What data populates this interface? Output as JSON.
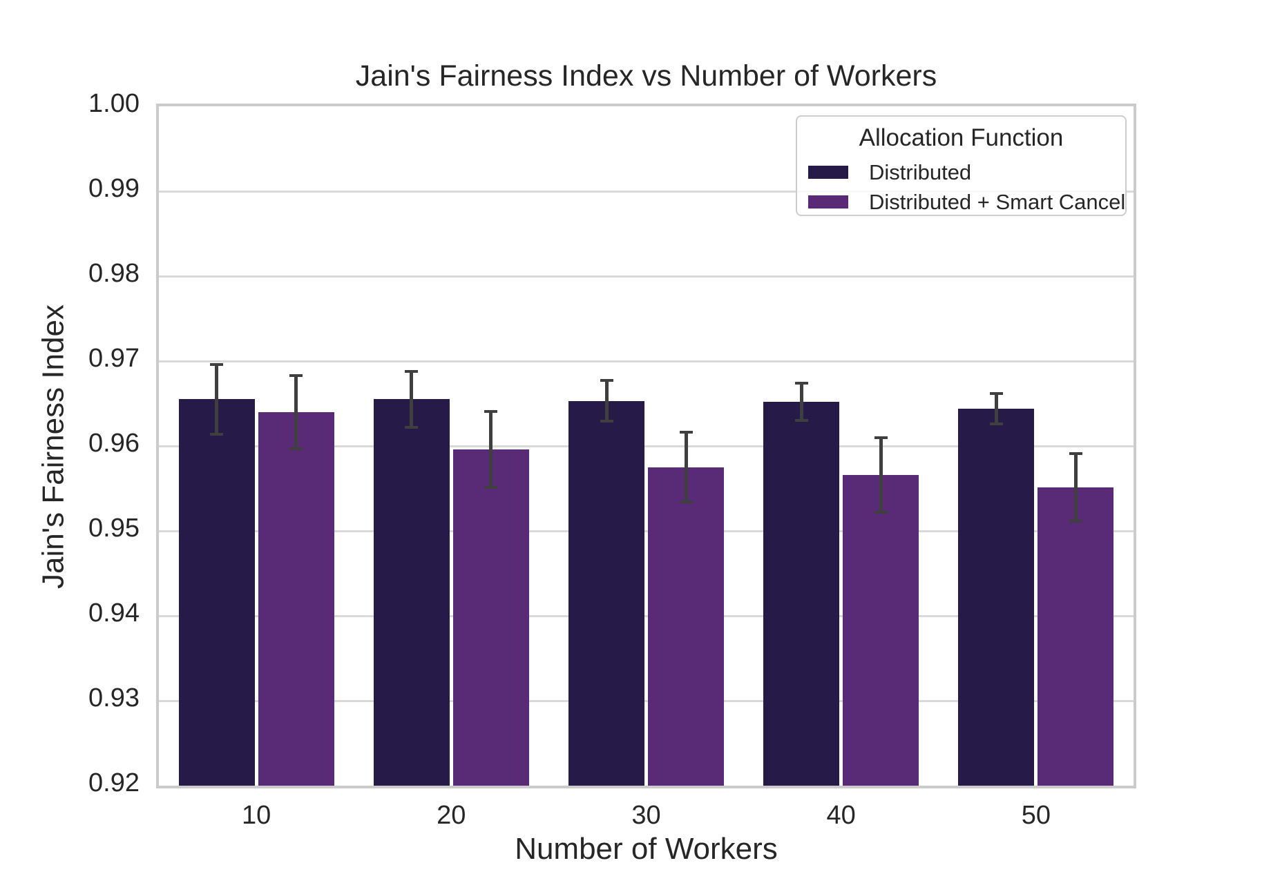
{
  "chart_data": {
    "type": "bar",
    "title": "Jain's Fairness Index vs Number of Workers",
    "xlabel": "Number of Workers",
    "ylabel": "Jain's Fairness Index",
    "categories": [
      "10",
      "20",
      "30",
      "40",
      "50"
    ],
    "series": [
      {
        "name": "Distributed",
        "color": "#261a48",
        "values": [
          0.9655,
          0.9655,
          0.9653,
          0.9652,
          0.9644
        ],
        "errors": [
          0.0041,
          0.0033,
          0.0024,
          0.0022,
          0.0018
        ]
      },
      {
        "name": "Distributed + Smart Cancel",
        "color": "#592a76",
        "values": [
          0.964,
          0.9596,
          0.9575,
          0.9566,
          0.9551
        ],
        "errors": [
          0.0043,
          0.0045,
          0.0041,
          0.0044,
          0.004
        ]
      }
    ],
    "ylim": [
      0.92,
      1.0
    ],
    "yticks": [
      "1.00",
      "0.99",
      "0.98",
      "0.97",
      "0.96",
      "0.95",
      "0.94",
      "0.93",
      "0.92"
    ],
    "grid": "horizontal",
    "legend": {
      "title": "Allocation Function",
      "position": "upper right"
    },
    "colors": {
      "errorbar": "#3f3f3f",
      "grid": "#d9d9d9",
      "spine": "#cbcbcb",
      "text": "#262626",
      "background": "#ffffff"
    }
  }
}
